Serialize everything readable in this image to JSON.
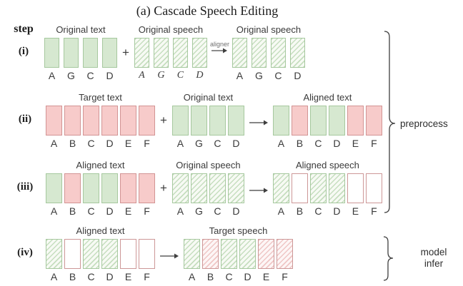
{
  "title": "(a) Cascade Speech Editing",
  "step_header": "step",
  "aligner_label": "aligner",
  "brackets": {
    "preprocess": "preprocess",
    "model_infer_line1": "model",
    "model_infer_line2": "infer"
  },
  "colors": {
    "green_fill": "#d6e8d0",
    "green_border": "#a6c89e",
    "pink_fill": "#f7cbca",
    "pink_border": "#d29494",
    "hatch_green_line": "#c6debf",
    "hatch_red_line": "#efc6c5",
    "empty_red_border": "#cd9797",
    "text": "#3a3a3a"
  },
  "rows": [
    {
      "step": "(i)",
      "items": [
        {
          "type": "group",
          "label": "Original text",
          "styles": [
            "green",
            "green",
            "green",
            "green"
          ],
          "letters": [
            "A",
            "G",
            "C",
            "D"
          ]
        },
        {
          "type": "plus"
        },
        {
          "type": "group",
          "label": "Original speech",
          "styles": [
            "hatch-green",
            "hatch-green",
            "hatch-green",
            "hatch-green"
          ],
          "letters": [
            "A",
            "G",
            "C",
            "D"
          ],
          "italic": true
        },
        {
          "type": "aligner"
        },
        {
          "type": "group",
          "label": "Original speech",
          "styles": [
            "hatch-green",
            "hatch-green",
            "hatch-green",
            "hatch-green"
          ],
          "letters": [
            "A",
            "G",
            "C",
            "D"
          ]
        }
      ]
    },
    {
      "step": "(ii)",
      "items": [
        {
          "type": "group",
          "label": "Target text",
          "styles": [
            "pink",
            "pink",
            "pink",
            "pink",
            "pink",
            "pink"
          ],
          "letters": [
            "A",
            "B",
            "C",
            "D",
            "E",
            "F"
          ]
        },
        {
          "type": "plus"
        },
        {
          "type": "group",
          "label": "Original text",
          "styles": [
            "green",
            "green",
            "green",
            "green"
          ],
          "letters": [
            "A",
            "G",
            "C",
            "D"
          ]
        },
        {
          "type": "arrow"
        },
        {
          "type": "group",
          "label": "Aligned text",
          "styles": [
            "green",
            "pink",
            "green",
            "green",
            "pink",
            "pink"
          ],
          "letters": [
            "A",
            "B",
            "C",
            "D",
            "E",
            "F"
          ]
        }
      ]
    },
    {
      "step": "(iii)",
      "items": [
        {
          "type": "group",
          "label": "Aligned text",
          "styles": [
            "green",
            "pink",
            "green",
            "green",
            "pink",
            "pink"
          ],
          "letters": [
            "A",
            "B",
            "C",
            "D",
            "E",
            "F"
          ]
        },
        {
          "type": "plus"
        },
        {
          "type": "group",
          "label": "Original speech",
          "styles": [
            "hatch-green",
            "hatch-green",
            "hatch-green",
            "hatch-green"
          ],
          "letters": [
            "A",
            "G",
            "C",
            "D"
          ]
        },
        {
          "type": "arrow"
        },
        {
          "type": "group",
          "label": "Aligned speech",
          "styles": [
            "hatch-green",
            "empty-red",
            "hatch-green",
            "hatch-green",
            "empty-red",
            "empty-red"
          ],
          "letters": [
            "A",
            "B",
            "C",
            "D",
            "E",
            "F"
          ]
        }
      ]
    },
    {
      "step": "(iv)",
      "items": [
        {
          "type": "group",
          "label": "Aligned text",
          "styles": [
            "hatch-green",
            "empty-red",
            "hatch-green",
            "hatch-green",
            "empty-red",
            "empty-red"
          ],
          "letters": [
            "A",
            "B",
            "C",
            "D",
            "E",
            "F"
          ]
        },
        {
          "type": "arrow"
        },
        {
          "type": "group",
          "label": "Target speech",
          "styles": [
            "hatch-green",
            "hatch-red",
            "hatch-green",
            "hatch-green",
            "hatch-red",
            "hatch-red"
          ],
          "letters": [
            "A",
            "B",
            "C",
            "D",
            "E",
            "F"
          ]
        }
      ]
    }
  ]
}
